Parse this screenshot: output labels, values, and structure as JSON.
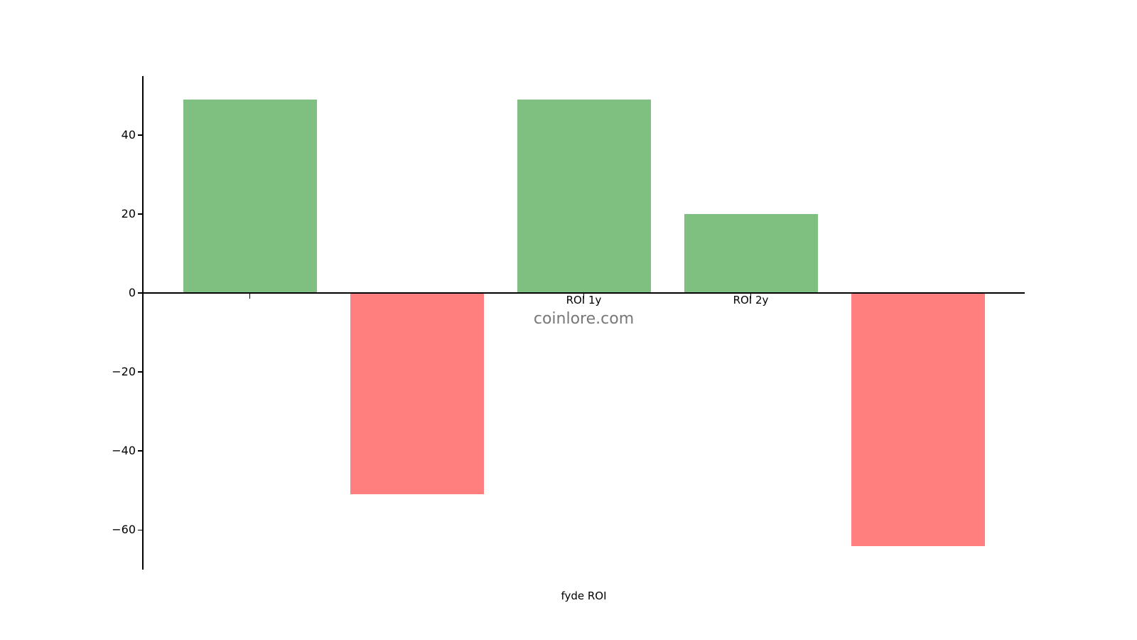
{
  "watermark": "coinlore.com",
  "chart_data": {
    "type": "bar",
    "title": "",
    "xlabel": "fyde ROI",
    "ylabel": "",
    "categories": [
      "",
      "",
      "ROI 1y",
      "ROI 2y",
      ""
    ],
    "values": [
      49,
      -51,
      49,
      20,
      -64
    ],
    "series_name": "fyde ROI",
    "yticks": [
      40,
      20,
      0,
      -20,
      -40,
      -60
    ],
    "ytick_labels": [
      "40",
      "20",
      "0",
      "−20",
      "−40",
      "−60"
    ],
    "ylim": [
      -70,
      55
    ],
    "grid": false,
    "legend": false,
    "positive_color": "#7fbf7f",
    "negative_color": "#ff7f7f",
    "axis_color": "#000000",
    "watermark_color": "#777777",
    "background_color": "#ffffff"
  }
}
